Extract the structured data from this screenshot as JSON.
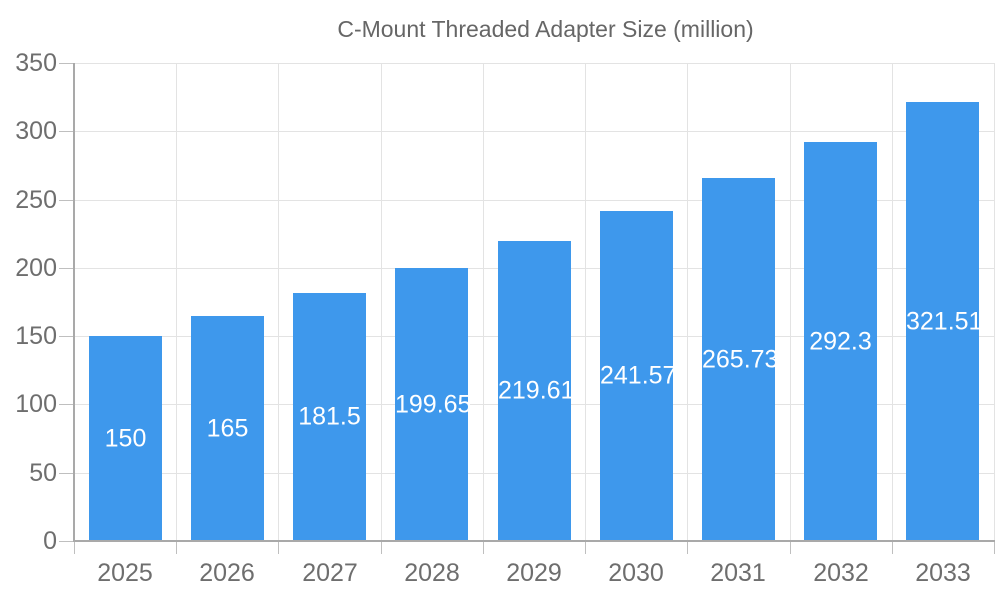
{
  "chart_data": {
    "type": "bar",
    "title": "",
    "legend": "C-Mount Threaded Adapter Size (million)",
    "categories": [
      "2025",
      "2026",
      "2027",
      "2028",
      "2029",
      "2030",
      "2031",
      "2032",
      "2033"
    ],
    "values": [
      150,
      165,
      181.5,
      199.65,
      219.61,
      241.57,
      265.73,
      292.3,
      321.51
    ],
    "value_labels": [
      "150",
      "165",
      "181.5",
      "199.65",
      "219.61",
      "241.57",
      "265.73",
      "292.3",
      "321.51"
    ],
    "xlabel": "",
    "ylabel": "",
    "ylim": [
      0,
      350
    ],
    "ytick_step": 50,
    "ytick_labels": [
      "0",
      "50",
      "100",
      "150",
      "200",
      "250",
      "300",
      "350"
    ],
    "grid": true,
    "legend_position": "top",
    "colors": {
      "bar": "#3E98EC",
      "value_label": "#FFFFFF",
      "tick_text": "#6E6E6E",
      "legend_text": "#666666",
      "gridline": "#E3E3E3",
      "axis": "#A9A9A9",
      "tick_mark": "#BFBFBF",
      "background": "#FFFFFF"
    }
  }
}
